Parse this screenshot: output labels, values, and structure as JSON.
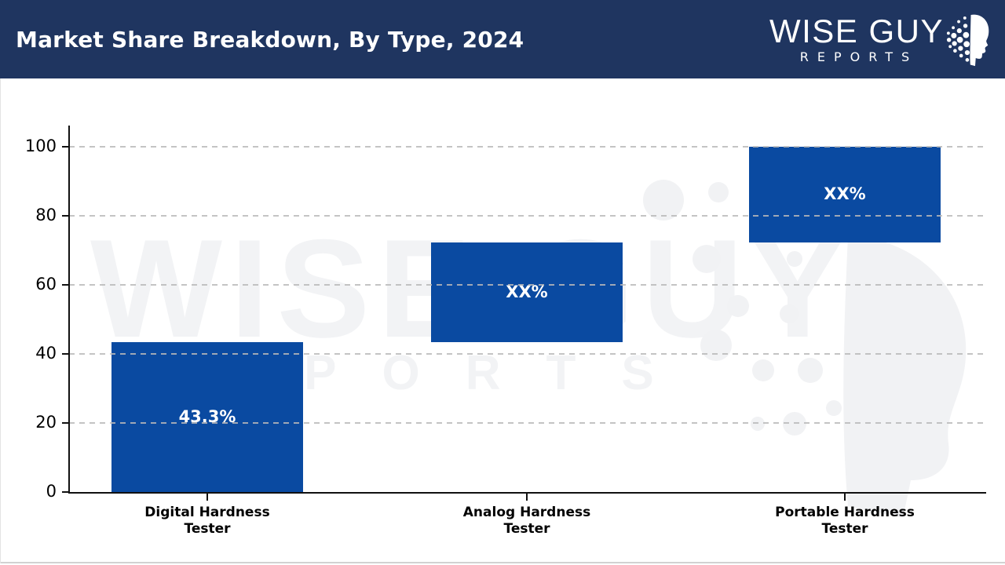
{
  "header": {
    "title": "Market Share Breakdown, By Type, 2024",
    "bg_color": "#1f3560",
    "logo": {
      "line1": "WISE GUY",
      "line2": "REPORTS"
    }
  },
  "watermark": {
    "line1": "WISE GUY",
    "line2": "REPORTS"
  },
  "chart_data": {
    "type": "bar",
    "variant": "floating-segment (waterfall-style market share)",
    "title": "Market Share Breakdown, By Type, 2024",
    "categories": [
      "Digital Hardness\nTester",
      "Analog Hardness\nTester",
      "Portable Hardness\nTester"
    ],
    "segments": [
      {
        "category": "Digital Hardness Tester",
        "start": 0,
        "end": 43.3,
        "label": "43.3%"
      },
      {
        "category": "Analog Hardness Tester",
        "start": 43.3,
        "end": 72.2,
        "label": "XX%"
      },
      {
        "category": "Portable Hardness Tester",
        "start": 72.2,
        "end": 100,
        "label": "XX%"
      }
    ],
    "ylim": [
      0,
      100
    ],
    "yticks": [
      0,
      20,
      40,
      60,
      80,
      100
    ],
    "grid": "horizontal-dashed",
    "legend": "none",
    "bar_color": "#0a4aa1",
    "bar_label_color": "#ffffff",
    "axis_color": "#111111",
    "gridline_color": "#bdbdbd"
  }
}
